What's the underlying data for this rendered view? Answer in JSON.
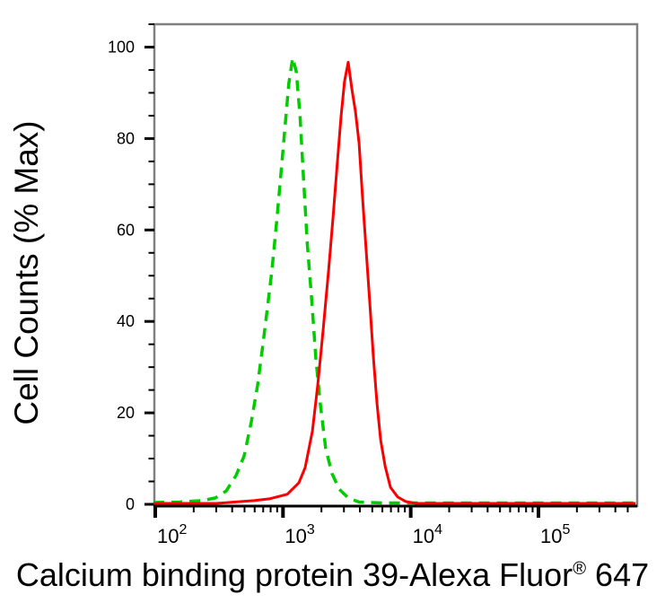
{
  "figure": {
    "y_axis_title": "Cell Counts (% Max)",
    "x_axis_title": {
      "main": "Calcium binding protein 39-Alexa Fluor",
      "registered_mark": "®",
      "suffix": " 647"
    }
  },
  "chart_data": {
    "type": "line",
    "subtype": "flow-cytometry-histogram-overlay",
    "title": "",
    "xlabel": "Calcium binding protein 39-Alexa Fluor® 647",
    "ylabel": "Cell Counts (% Max)",
    "x_scale": "log10",
    "xlim": [
      100,
      580000
    ],
    "ylim": [
      0,
      105
    ],
    "grid": false,
    "legend": "none",
    "x_axis": {
      "tick_base": "10",
      "tick_exponents": [
        2,
        3,
        4,
        5
      ],
      "minor_mantissas": [
        2,
        3,
        4,
        5,
        6,
        7,
        8,
        9
      ]
    },
    "y_axis": {
      "ticks": [
        0,
        20,
        40,
        60,
        80,
        100
      ],
      "minor_step": 5
    },
    "series": [
      {
        "name": "green-dashed-control",
        "style": "dashed",
        "color": "#00cc00",
        "width": 3.5,
        "x": [
          97,
          155,
          232,
          296,
          359,
          429,
          497,
          565,
          632,
          697,
          755,
          818,
          887,
          961,
          1040,
          1110,
          1190,
          1270,
          1360,
          1450,
          1550,
          1670,
          1810,
          1960,
          2160,
          2420,
          2760,
          3240,
          3940,
          6000,
          20000,
          100000,
          576000
        ],
        "y": [
          0.4,
          0.5,
          0.8,
          1.4,
          2.9,
          6.3,
          10.6,
          18,
          26,
          35,
          43,
          51,
          61,
          72,
          83,
          92,
          97.6,
          94.7,
          85,
          71,
          57,
          45.6,
          31.8,
          22,
          12.2,
          6.7,
          3.3,
          1.4,
          0.5,
          0.3,
          0.3,
          0.3,
          0.3
        ]
      },
      {
        "name": "red-solid-stained",
        "style": "solid",
        "color": "#fa0000",
        "width": 3,
        "x": [
          97,
          300,
          594,
          781,
          1080,
          1330,
          1490,
          1700,
          1870,
          2060,
          2280,
          2470,
          2670,
          2850,
          3030,
          3240,
          3460,
          3690,
          3940,
          4200,
          4490,
          4790,
          5110,
          5450,
          5820,
          6310,
          6940,
          7900,
          9120,
          11000,
          30000,
          100000,
          576000
        ],
        "y": [
          0.2,
          0.2,
          0.8,
          1.2,
          2.2,
          4.7,
          8,
          16,
          26,
          38,
          51.5,
          63,
          75,
          85,
          92.5,
          96.7,
          90.8,
          86,
          79,
          67,
          55,
          43.6,
          31.8,
          22,
          14,
          8.3,
          3.7,
          1.6,
          0.6,
          0.2,
          0.2,
          0.2,
          0.2
        ]
      }
    ]
  }
}
